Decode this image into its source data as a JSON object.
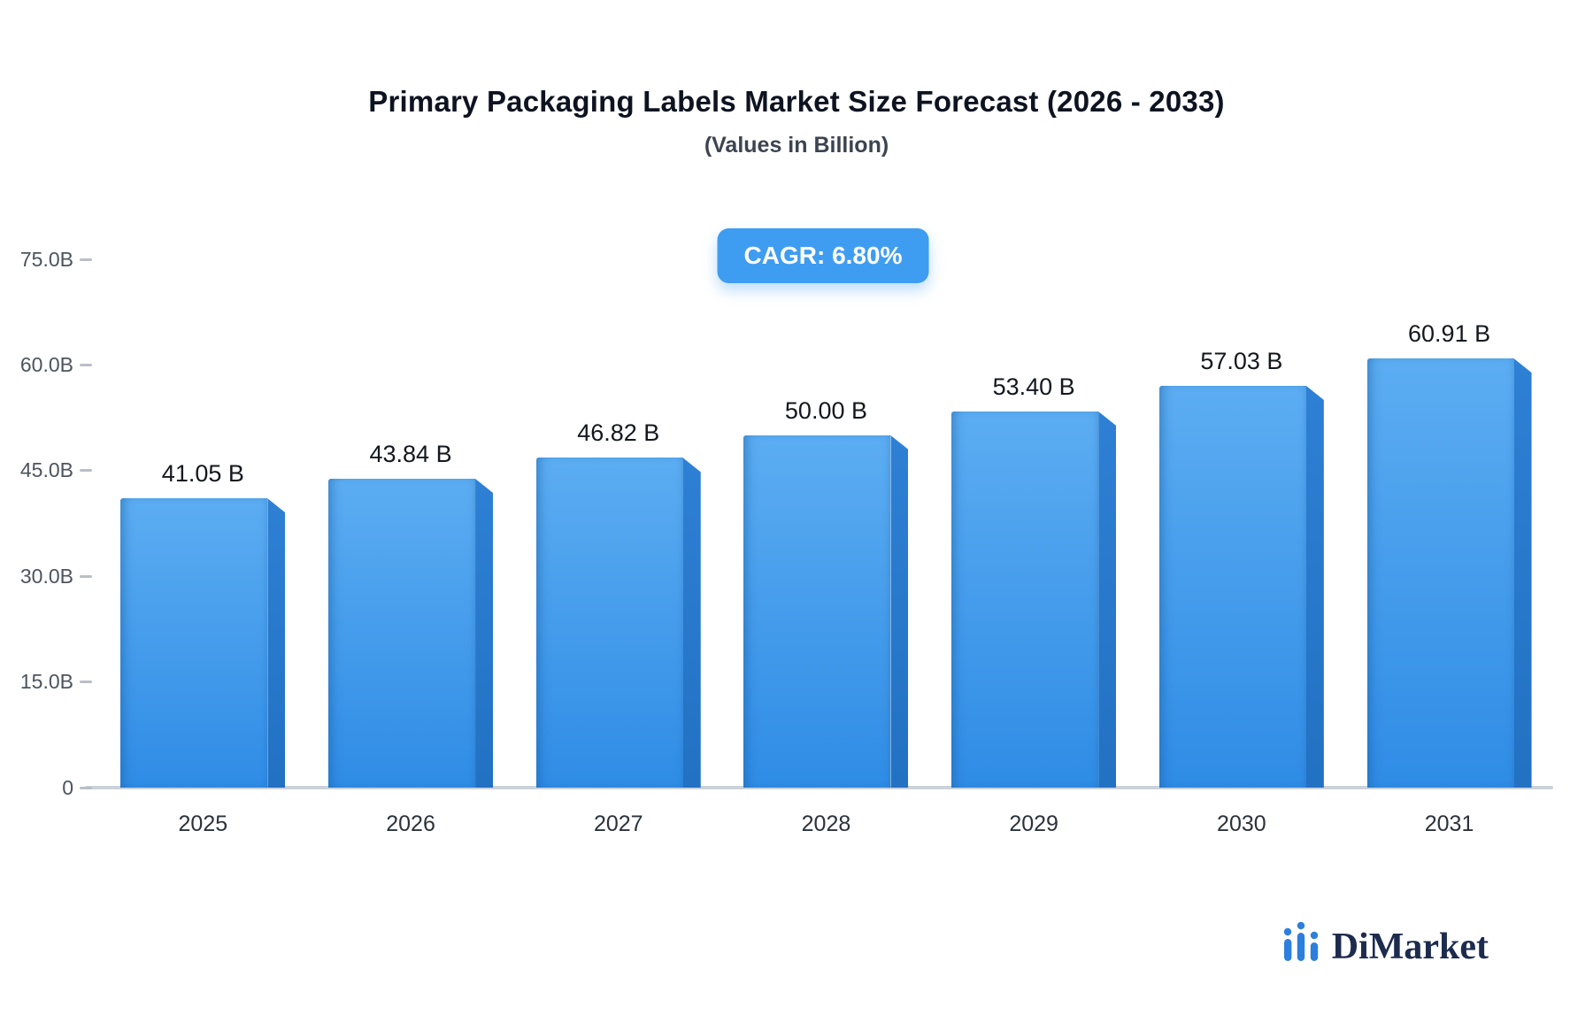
{
  "chart_data": {
    "type": "bar",
    "title": "Primary Packaging Labels Market Size Forecast (2026 - 2033)",
    "subtitle": "(Values in Billion)",
    "cagr_label": "CAGR: 6.80%",
    "categories": [
      "2025",
      "2026",
      "2027",
      "2028",
      "2029",
      "2030",
      "2031"
    ],
    "values": [
      41.05,
      43.84,
      46.82,
      50.0,
      53.4,
      57.03,
      60.91
    ],
    "value_labels": [
      "41.05 B",
      "43.84 B",
      "46.82 B",
      "50.00 B",
      "53.40 B",
      "57.03 B",
      "60.91 B"
    ],
    "xlabel": "",
    "ylabel": "",
    "ylim": [
      0,
      75
    ],
    "yticks": [
      0,
      15,
      30,
      45,
      60,
      75
    ],
    "ytick_labels": [
      "0",
      "15.0B",
      "30.0B",
      "45.0B",
      "60.0B",
      "75.0B"
    ],
    "grid": false,
    "legend": false,
    "colors": {
      "accent": "#3f9df1",
      "bar_face_top": "#5cadf2",
      "bar_face_bottom": "#2f8ce5",
      "bar_side_top": "#2e80d4",
      "bar_side_bottom": "#2271c3",
      "baseline": "#ccd2d9"
    }
  },
  "branding": {
    "logo_text": "DiMarket",
    "logo_icon": "bar-chart-dots-icon",
    "logo_color": "#2d7fdd"
  }
}
